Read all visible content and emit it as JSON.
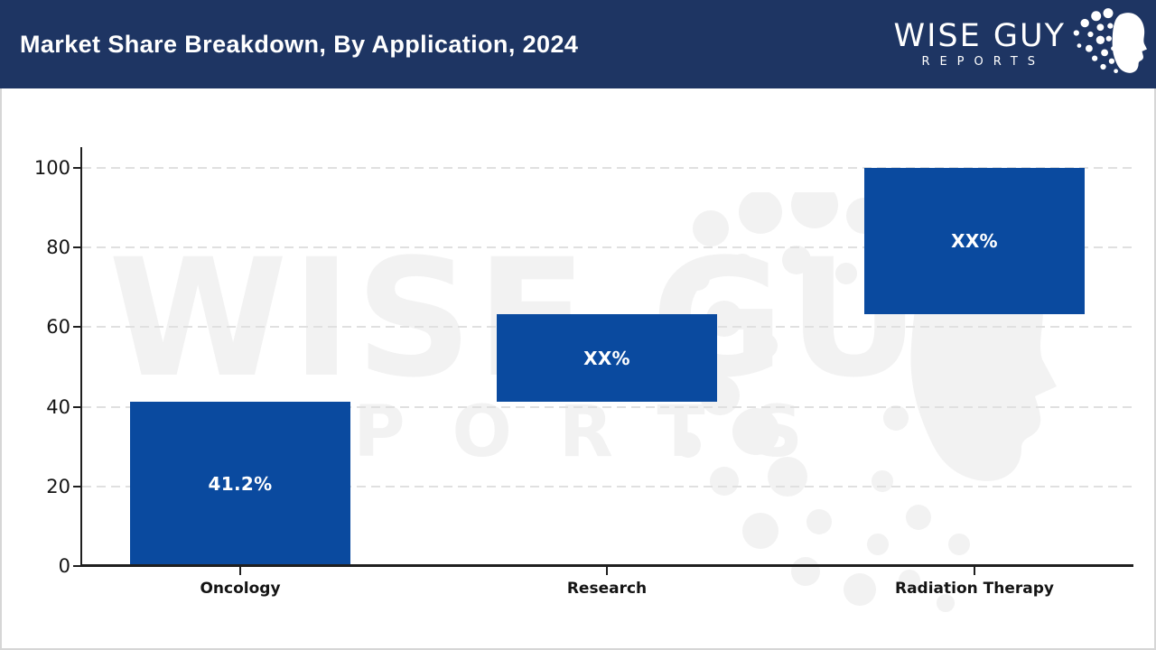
{
  "header": {
    "title": "Market Share Breakdown, By Application, 2024",
    "logo": {
      "brand": "WISE GUY",
      "tagline": "REPORTS"
    }
  },
  "watermark": {
    "brand": "WISE GUY",
    "tagline": "REPORTS"
  },
  "colors": {
    "header_bg": "#1e3563",
    "bar": "#0a4a9f",
    "axis": "#1f1f1f",
    "grid": "#e0e0e0",
    "watermark": "#f2f2f2",
    "bar_label": "#ffffff"
  },
  "chart_data": {
    "type": "bar",
    "variant": "waterfall",
    "title": "Market Share Breakdown, By Application, 2024",
    "categories": [
      "Oncology",
      "Research",
      "Radiation Therapy"
    ],
    "segments": [
      {
        "category": "Oncology",
        "start": 0,
        "end": 41.2,
        "label": "41.2%"
      },
      {
        "category": "Research",
        "start": 41.2,
        "end": 63.3,
        "label": "XX%"
      },
      {
        "category": "Radiation Therapy",
        "start": 63.3,
        "end": 100,
        "label": "XX%"
      }
    ],
    "ylim": [
      0,
      100
    ],
    "yticks": [
      0,
      20,
      40,
      60,
      80,
      100
    ],
    "xlabel": "",
    "ylabel": "",
    "grid": "horizontal dashed",
    "legend_position": "none",
    "bar_color": "#0a4a9f",
    "bar_label_color": "#ffffff"
  }
}
